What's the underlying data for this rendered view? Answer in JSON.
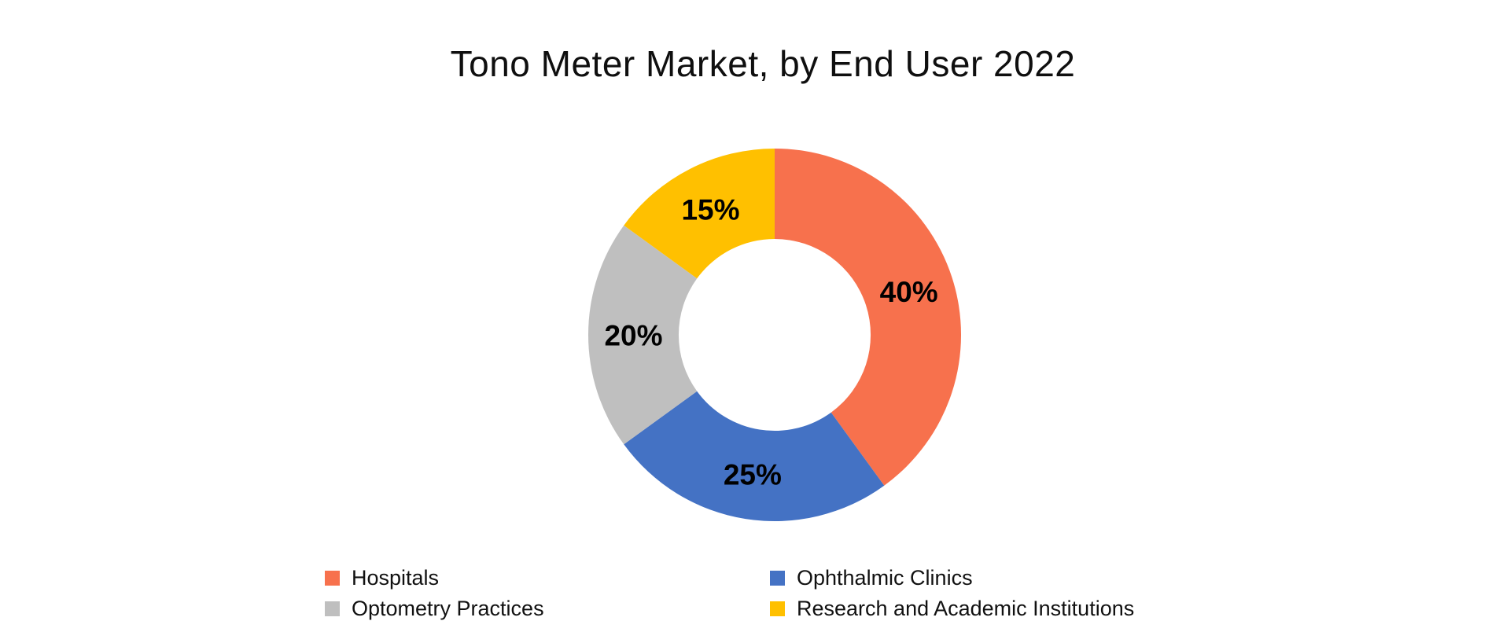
{
  "page": {
    "background_color": "#FFFFFF"
  },
  "chart_data": {
    "type": "pie",
    "subtype": "donut",
    "title": "Tono Meter Market, by End User 2022",
    "categories": [
      "Hospitals",
      "Ophthalmic Clinics",
      "Optometry Practices",
      "Research and Academic Institutions"
    ],
    "values": [
      40,
      25,
      20,
      15
    ],
    "unit": "%",
    "data_labels": [
      "40%",
      "25%",
      "20%",
      "15%"
    ],
    "colors": [
      "#F7714D",
      "#4472C4",
      "#BFBFBF",
      "#FFC000"
    ],
    "start_angle_deg": 0,
    "direction": "clockwise",
    "inner_radius_ratio": 0.515,
    "data_label_color": "#000000",
    "title_color": "#0F0F0F",
    "legend_position": "bottom",
    "legend_columns": 2,
    "legend_order": [
      "Hospitals",
      "Ophthalmic Clinics",
      "Optometry Practices",
      "Research and Academic Institutions"
    ]
  }
}
